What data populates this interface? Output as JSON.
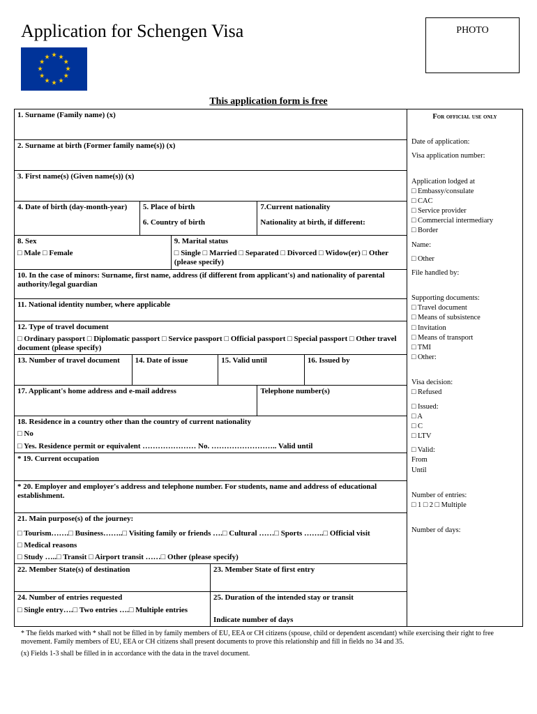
{
  "title": "Application for Schengen Visa",
  "photo_label": "PHOTO",
  "subtitle": "This application form is free",
  "fields": {
    "f1": "1. Surname (Family name) (x)",
    "f2": "2. Surname at birth (Former family name(s)) (x)",
    "f3": "3. First name(s) (Given name(s)) (x)",
    "f4": "4. Date of birth (day-month-year)",
    "f5": "5. Place of birth",
    "f6": "6. Country of birth",
    "f7": "7.Current nationality",
    "f7b": "Nationality at birth, if different:",
    "f8": "8. Sex",
    "f8_opts": "□ Male □ Female",
    "f9": "9. Marital status",
    "f9_opts": "□ Single □ Married □ Separated □ Divorced □ Widow(er) □ Other (please specify)",
    "f10": "10. In the case of minors: Surname, first name, address (if different from applicant's) and nationality of parental authority/legal guardian",
    "f11": "11. National identity number, where applicable",
    "f12": "12. Type of travel document",
    "f12_opts": "□ Ordinary passport □ Diplomatic passport □ Service passport □ Official passport □ Special passport □ Other travel document (please specify)",
    "f13": "13. Number of travel document",
    "f14": "14. Date of issue",
    "f15": "15. Valid until",
    "f16": "16. Issued by",
    "f17": "17. Applicant's home address and e-mail address",
    "f17b": "Telephone number(s)",
    "f18": "18. Residence in a country other than the country of current nationality",
    "f18_no": "□ No",
    "f18_yes": "□ Yes. Residence permit or equivalent ………………… No. …………………….. Valid until",
    "f19": "* 19. Current occupation",
    "f20": "* 20. Employer and employer's address and telephone number. For students, name and address of educational establishment.",
    "f21": "21. Main purpose(s) of the journey:",
    "f21_opts1": "□ Tourism…….□ Business……..□ Visiting family or friends ….□ Cultural ……□ Sports ……..□ Official visit",
    "f21_opts2": "□ Medical reasons",
    "f21_opts3": "□ Study …..□ Transit □ Airport transit ……□ Other (please specify)",
    "f22": "22. Member State(s) of destination",
    "f23": "23. Member State of first entry",
    "f24": "24. Number of entries requested",
    "f24_opts": "□ Single entry….□ Two entries ….□ Multiple entries",
    "f25": "25. Duration of the intended stay or transit",
    "f25b": "Indicate number of days"
  },
  "side": {
    "title": "For official use only",
    "date": "Date of application:",
    "num": "Visa application number:",
    "lodged": "Application lodged at",
    "lodged_opts": [
      "□ Embassy/consulate",
      "□ CAC",
      "□ Service provider",
      "□ Commercial intermediary",
      "□ Border"
    ],
    "name": "Name:",
    "other": "□ Other",
    "file": "File handled by:",
    "supporting": "Supporting documents:",
    "supporting_opts": [
      "□ Travel document",
      "□ Means of subsistence",
      "□ Invitation",
      "□ Means of transport",
      "□ TMI",
      "□ Other:"
    ],
    "decision": "Visa decision:",
    "refused": "□ Refused",
    "issued": "□ Issued:",
    "issued_opts": [
      "□ A",
      "□ C",
      "□ LTV"
    ],
    "valid": "□ Valid:",
    "from": "From",
    "until": "Until",
    "entries": "Number of entries:",
    "entries_opts": "□ 1 □ 2 □ Multiple",
    "days": "Number of days:"
  },
  "footnote1": "* The fields marked with * shall not be filled in by family members of EU, EEA or CH citizens (spouse, child or dependent ascendant) while exercising their right to free movement. Family members of EU, EEA or CH citizens shall present documents to prove this relationship and fill in fields no 34 and 35.",
  "footnote2": "(x) Fields 1-3 shall be filled in in accordance with the data in the travel document.",
  "eu_flag": {
    "bg": "#003399",
    "star_color": "#ffcc00",
    "star_count": 12
  }
}
